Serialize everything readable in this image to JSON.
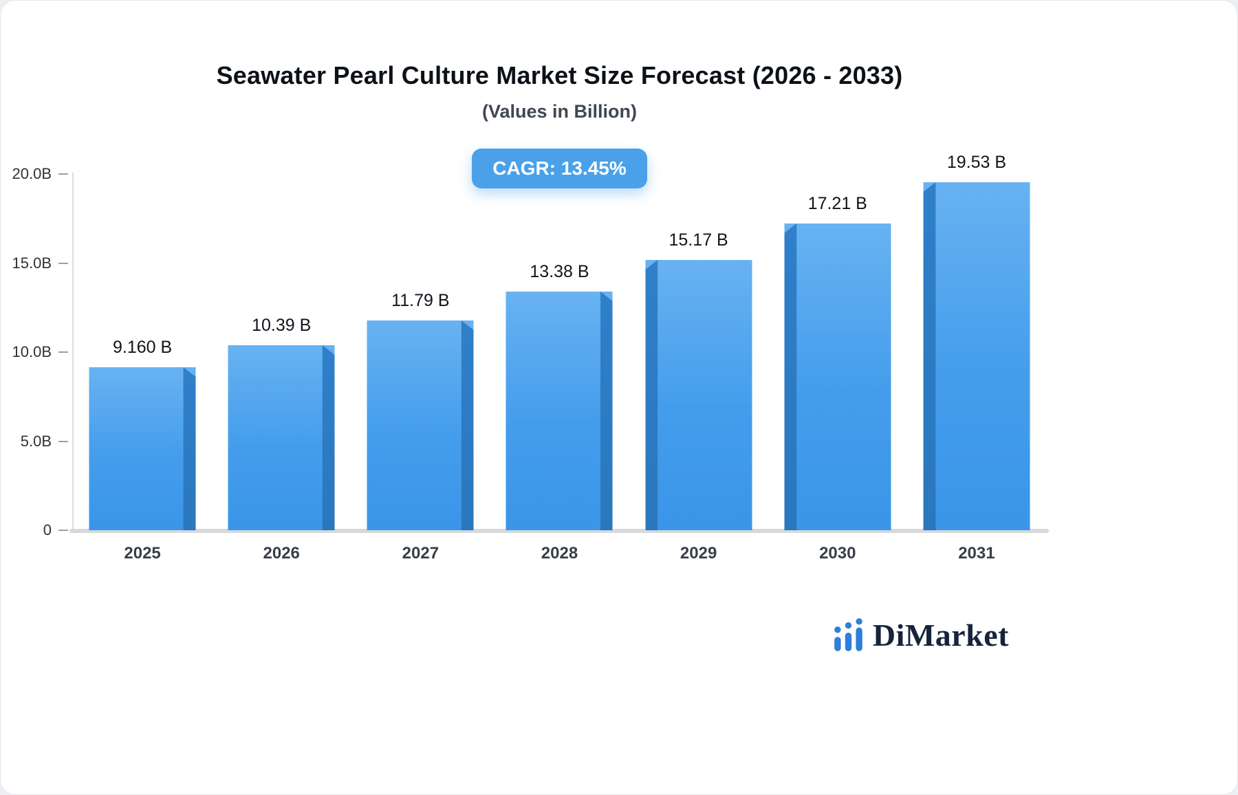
{
  "header": {
    "title": "Seawater Pearl Culture Market Size Forecast (2026 - 2033)",
    "subtitle": "(Values in Billion)",
    "cagr_badge": "CAGR: 13.45%"
  },
  "logo": {
    "text": "DiMarket",
    "icon": "bar-chart-icon",
    "icon_color": "#2e7fd9",
    "text_color": "#15243c"
  },
  "chart_data": {
    "type": "bar",
    "title": "Seawater Pearl Culture Market Size Forecast (2026 - 2033)",
    "subtitle": "(Values in Billion)",
    "cagr": "13.45%",
    "categories": [
      "2025",
      "2026",
      "2027",
      "2028",
      "2029",
      "2030",
      "2031"
    ],
    "values": [
      9.16,
      10.39,
      11.79,
      13.38,
      15.17,
      17.21,
      19.53
    ],
    "labels": [
      "9.160 B",
      "10.39 B",
      "11.79 B",
      "13.38 B",
      "15.17 B",
      "17.21 B",
      "19.53 B"
    ],
    "xlabel": "",
    "ylabel": "",
    "ylim": [
      0,
      20
    ],
    "grid": false,
    "legend": "none",
    "y_ticks": [
      {
        "value": 20,
        "label": "20.0B"
      },
      {
        "value": 15,
        "label": "15.0B"
      },
      {
        "value": 10,
        "label": "10.0B"
      },
      {
        "value": 5,
        "label": "5.0B"
      },
      {
        "value": 0,
        "label": "0"
      }
    ],
    "bar_color_top": "#68b2f1",
    "bar_color_bottom": "#3b95e8",
    "bar_side_color": "#2d7cc3"
  }
}
